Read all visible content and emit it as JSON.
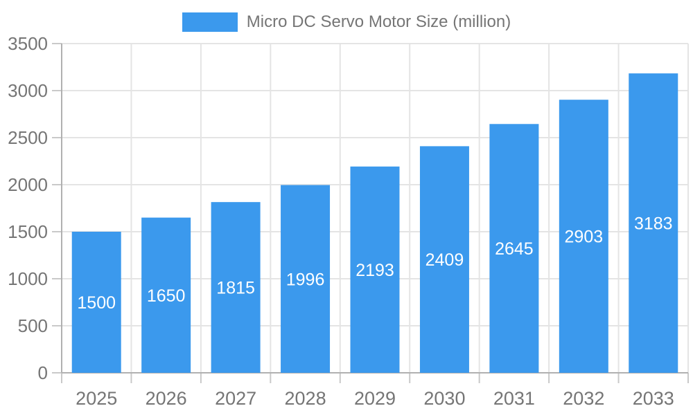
{
  "chart_data": {
    "type": "bar",
    "title": "Micro DC Servo Motor Size (million)",
    "categories": [
      "2025",
      "2026",
      "2027",
      "2028",
      "2029",
      "2030",
      "2031",
      "2032",
      "2033"
    ],
    "values": [
      1500,
      1650,
      1815,
      1996,
      2193,
      2409,
      2645,
      2903,
      3183
    ],
    "xlabel": "",
    "ylabel": "",
    "ylim": [
      0,
      3500
    ],
    "yticks": [
      0,
      500,
      1000,
      1500,
      2000,
      2500,
      3000,
      3500
    ],
    "grid": true,
    "vertical_grid": true,
    "bar_value_labels": true,
    "legend_position": "top-center"
  },
  "legend": {
    "label": "Micro DC Servo Motor Size (million)"
  },
  "colors": {
    "bar": "#3B99ED",
    "bar_label_text": "#FFFFFF",
    "axis_text": "#757575",
    "axis_line": "#B0B0B0",
    "grid_line": "#E4E4E4",
    "tick_line": "#C9C9C9",
    "background": "#FFFFFF"
  }
}
